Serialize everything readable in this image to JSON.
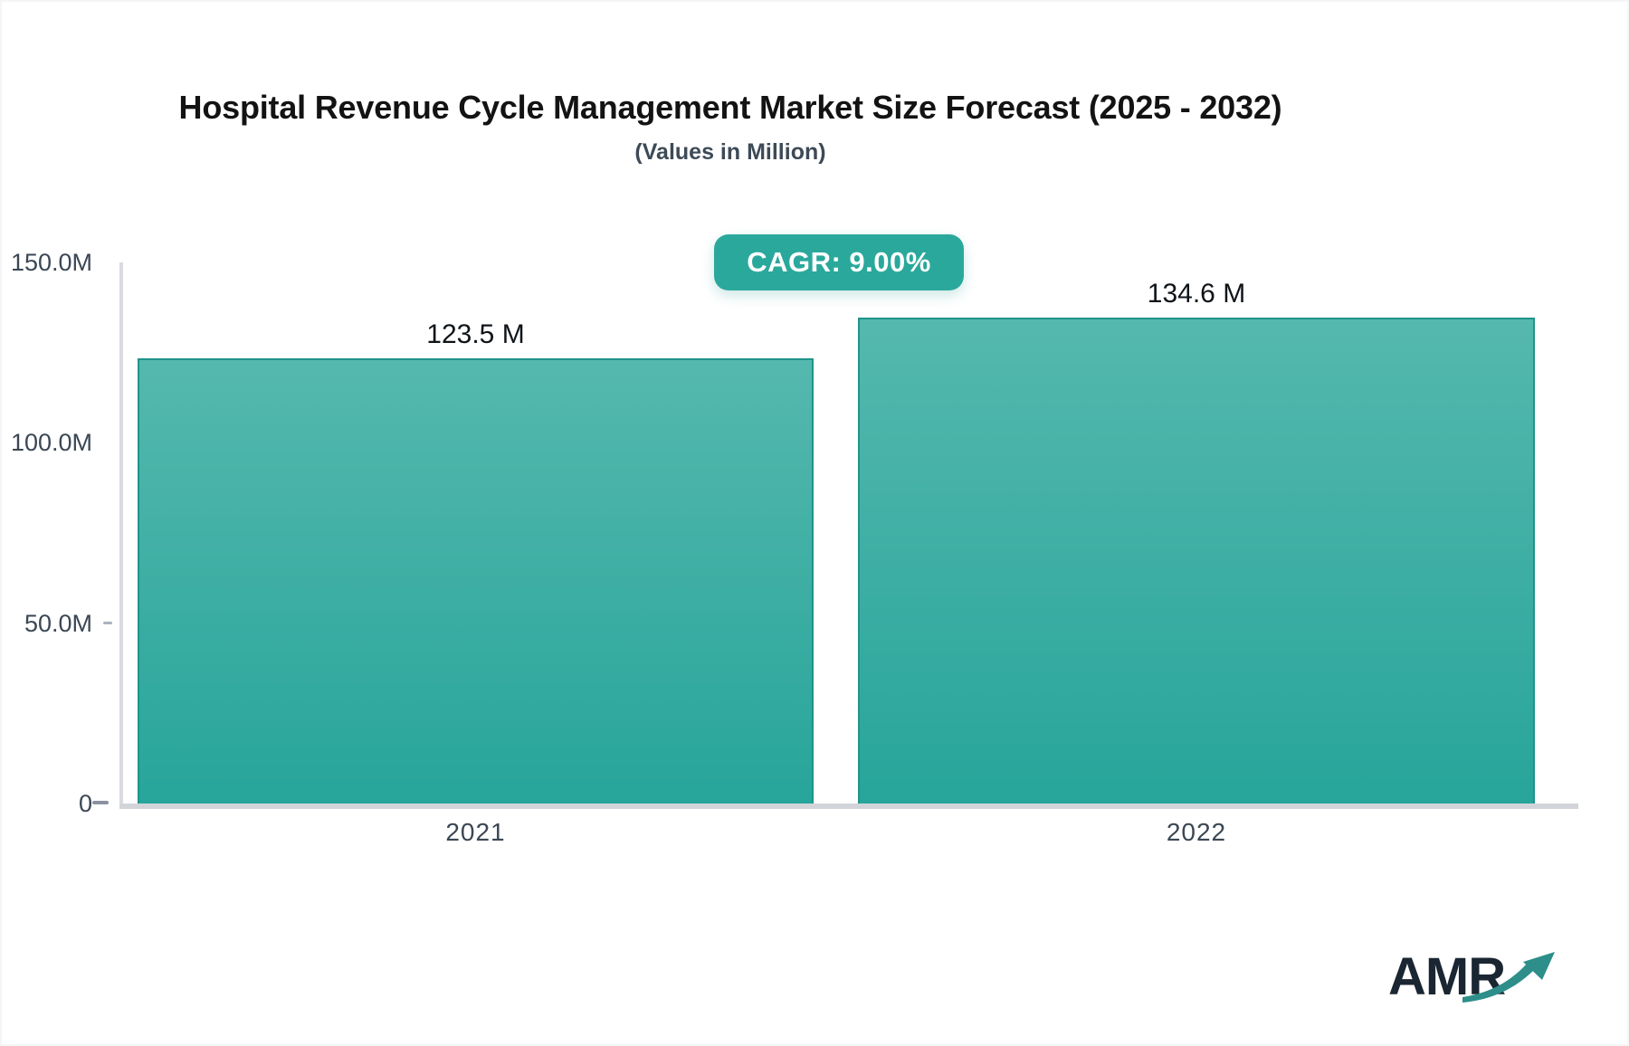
{
  "header": {
    "title": "Hospital Revenue Cycle Management Market Size Forecast (2025 - 2032)",
    "subtitle": "(Values in Million)"
  },
  "badge": {
    "label": "CAGR: 9.00%"
  },
  "chart_data": {
    "type": "bar",
    "title": "Hospital Revenue Cycle Management Market Size Forecast (2025 - 2032)",
    "subtitle": "(Values in Million)",
    "unit": "Million",
    "cagr_label": "CAGR: 9.00%",
    "categories": [
      "2021",
      "2022"
    ],
    "values": [
      123.5,
      134.6
    ],
    "value_labels": [
      "123.5 M",
      "134.6 M"
    ],
    "xlabel": "",
    "ylabel": "",
    "ylim": [
      0,
      150
    ],
    "yticks": [
      {
        "label": "150.0M",
        "value": 150
      },
      {
        "label": "100.0M",
        "value": 100
      },
      {
        "label": "50.0M",
        "value": 50
      },
      {
        "label": "0",
        "value": 0
      }
    ],
    "grid": false,
    "legend": null,
    "colors": {
      "accent": "#2ba89c",
      "bar_top": "#55b8ae",
      "bar_bottom": "#27a59a",
      "bar_border": "#1f948b",
      "axis_line": "#d2d4da",
      "axis_text": "#3b4754",
      "title_text": "#131313"
    }
  },
  "logo": {
    "text": "AMR",
    "arrow_icon": "growth-arrow-icon",
    "text_color": "#1a2631",
    "arrow_color": "#2d8e8a"
  }
}
